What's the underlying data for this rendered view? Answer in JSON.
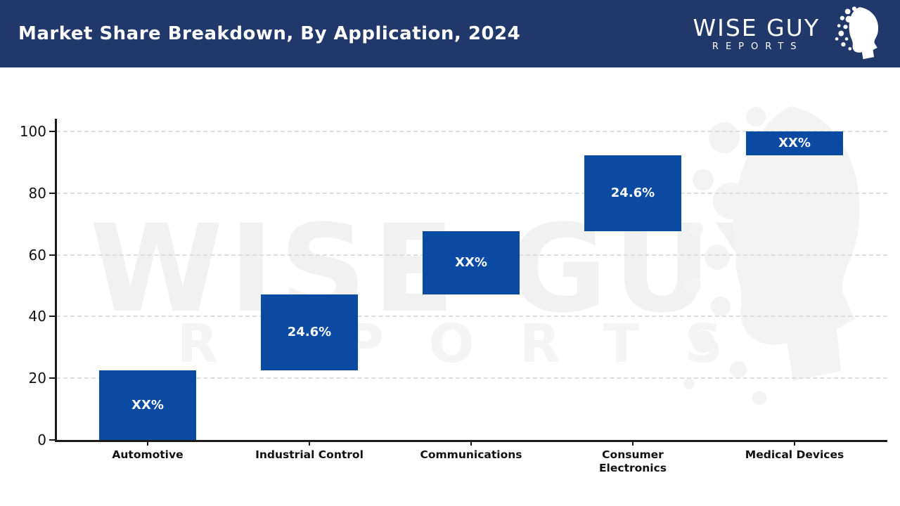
{
  "header": {
    "bg_color": "#21386B",
    "title": "Market Share Breakdown, By Application, 2024",
    "logo": {
      "brand": "WISE GUY",
      "tagline": "REPORTS",
      "icon": "dotted-head-profile-icon"
    }
  },
  "watermark": {
    "brand": "WISE GUY",
    "tagline": "REPORTS",
    "icon": "dotted-head-profile-watermark"
  },
  "chart_data": {
    "type": "bar",
    "subtype": "waterfall-stacked-percentage",
    "title": "Market Share Breakdown, By Application, 2024",
    "categories": [
      "Automotive",
      "Industrial Control",
      "Communications",
      "Consumer Electronics",
      "Medical Devices"
    ],
    "segments": [
      {
        "category": "Automotive",
        "tick_label": "Automotive",
        "start": 0,
        "end": 22.6,
        "value": 22.6,
        "label": "XX%"
      },
      {
        "category": "Industrial Control",
        "tick_label": "Industrial Control",
        "start": 22.6,
        "end": 47.2,
        "value": 24.6,
        "label": "24.6%"
      },
      {
        "category": "Communications",
        "tick_label": "Communications",
        "start": 47.2,
        "end": 67.7,
        "value": 20.5,
        "label": "XX%"
      },
      {
        "category": "Consumer Electronics",
        "tick_label": "Consumer\nElectronics",
        "start": 67.7,
        "end": 92.3,
        "value": 24.6,
        "label": "24.6%"
      },
      {
        "category": "Medical Devices",
        "tick_label": "Medical Devices",
        "start": 92.3,
        "end": 100,
        "value": 7.7,
        "label": "XX%"
      }
    ],
    "bar_color": "#0A4AA3",
    "bar_label_color": "#FFFFFF",
    "axis_color": "#1B1B1B",
    "grid_color": "#DEDEDE",
    "ylim": [
      0,
      100
    ],
    "yticks": [
      0,
      20,
      40,
      60,
      80,
      100
    ],
    "grid": "horizontal-dashed",
    "legend": null,
    "xlabel": "",
    "ylabel": ""
  }
}
